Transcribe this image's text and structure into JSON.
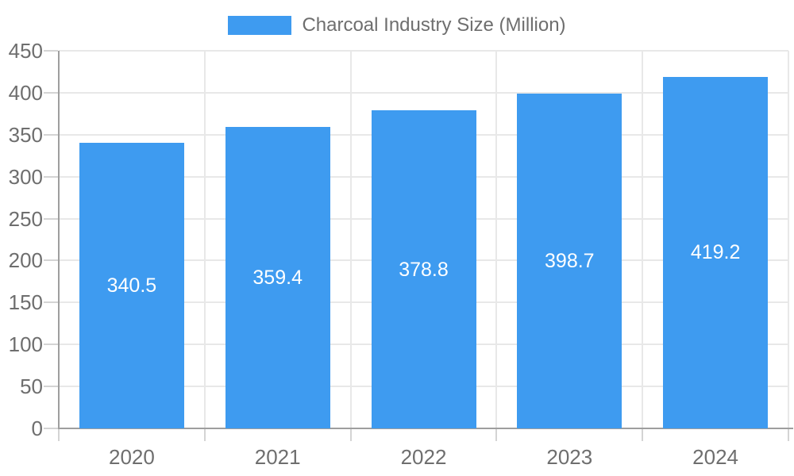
{
  "chart_data": {
    "type": "bar",
    "title": "Charcoal Industry Size (Million)",
    "series_name": "Charcoal Industry Size (Million)",
    "categories": [
      "2020",
      "2021",
      "2022",
      "2023",
      "2024"
    ],
    "values": [
      340.5,
      359.4,
      378.8,
      398.7,
      419.2
    ],
    "value_labels": [
      "340.5",
      "359.4",
      "378.8",
      "398.7",
      "419.2"
    ],
    "xlabel": "",
    "ylabel": "",
    "ylim": [
      0,
      450
    ],
    "yticks": [
      0,
      50,
      100,
      150,
      200,
      250,
      300,
      350,
      400,
      450
    ],
    "grid": true,
    "legend_position": "top-center",
    "bar_label_position": "inside-center"
  },
  "legend": {
    "label": "Charcoal Industry Size (Million)"
  },
  "colors": {
    "bar": "#3E9BF0",
    "axis": "#9E9E9E",
    "grid": "#E8E8E8",
    "tick": "#D4D4D4",
    "text": "#6E6E6E",
    "bar_label": "#FFFFFF",
    "background": "#FFFFFF"
  }
}
